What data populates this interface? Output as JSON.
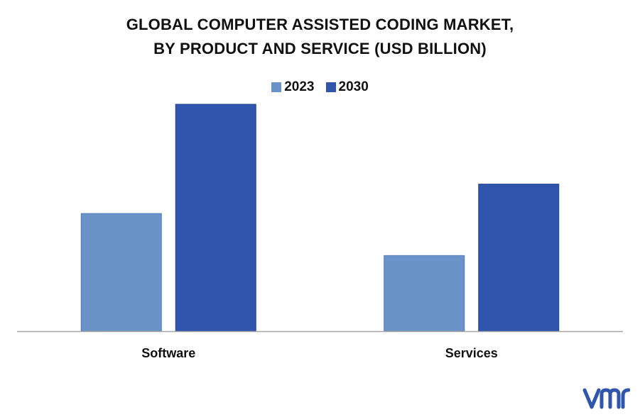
{
  "title_lines": [
    "GLOBAL COMPUTER ASSISTED CODING MARKET,",
    "BY PRODUCT AND SERVICE (USD BILLION)"
  ],
  "chart_data": {
    "type": "bar",
    "title": "GLOBAL COMPUTER ASSISTED CODING MARKET, BY PRODUCT AND SERVICE (USD BILLION)",
    "categories": [
      "Software",
      "Services"
    ],
    "series": [
      {
        "name": "2023",
        "values": [
          2.8,
          1.8
        ],
        "color": "#6a93c8"
      },
      {
        "name": "2030",
        "values": [
          5.4,
          3.5
        ],
        "color": "#2f55ac"
      }
    ],
    "ylim": [
      0,
      5.4
    ],
    "grid": false,
    "legend_position": "top-center"
  },
  "logo": {
    "name": "vmr-logo",
    "text": "vmr",
    "color": "#2f55ac"
  }
}
